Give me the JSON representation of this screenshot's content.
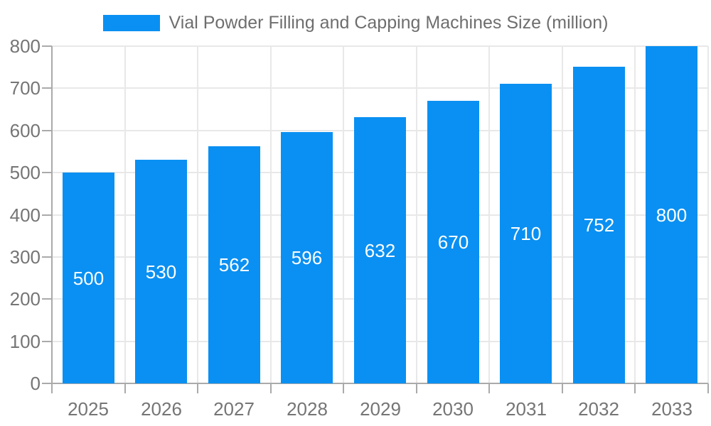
{
  "chart_data": {
    "type": "bar",
    "title": "Vial Powder Filling and Capping Machines Size (million)",
    "categories": [
      "2025",
      "2026",
      "2027",
      "2028",
      "2029",
      "2030",
      "2031",
      "2032",
      "2033"
    ],
    "values": [
      500,
      530,
      562,
      596,
      632,
      670,
      710,
      752,
      800
    ],
    "xlabel": "",
    "ylabel": "",
    "ylim": [
      0,
      800
    ],
    "ytick_step": 100,
    "grid": true,
    "legend_position": "top-center",
    "value_labels": "centered-inside-bars",
    "colors": {
      "bar": "#0a90f2",
      "value_label": "#ffffff",
      "axis_text": "#757575",
      "title_text": "#6e6e6e",
      "gridline": "#e8e8e8",
      "axis_line": "#aaaaaa",
      "background": "#ffffff"
    }
  }
}
